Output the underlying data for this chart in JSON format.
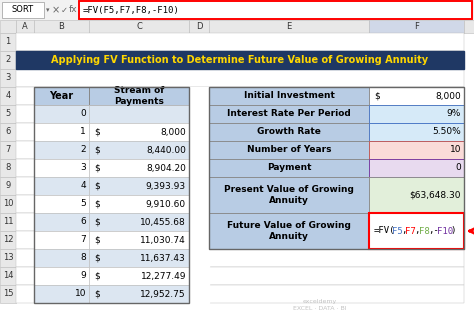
{
  "title": "Applying FV Function to Determine Future Value of Growing Annuity",
  "title_bg": "#1F3864",
  "title_color": "#FFD700",
  "formula_bar_text": "=FV(F5,F7,F8,-F10)",
  "formula_bar_cell": "SORT",
  "left_table_header_bg": "#B8CCE4",
  "left_rows": [
    [
      "0",
      "",
      ""
    ],
    [
      "1",
      "$",
      "8,000"
    ],
    [
      "2",
      "$",
      "8,440.00"
    ],
    [
      "3",
      "$",
      "8,904.20"
    ],
    [
      "4",
      "$",
      "9,393.93"
    ],
    [
      "5",
      "$",
      "9,910.60"
    ],
    [
      "6",
      "$",
      "10,455.68"
    ],
    [
      "7",
      "$",
      "11,030.74"
    ],
    [
      "8",
      "$",
      "11,637.43"
    ],
    [
      "9",
      "$",
      "12,277.49"
    ],
    [
      "10",
      "$",
      "12,952.75"
    ]
  ],
  "right_rows": [
    {
      "label": "Initial Investment",
      "dollar": "$",
      "value": "8,000",
      "lbg": "#B8CCE4",
      "vbg": "#FFFFFF",
      "vborder": "#888888"
    },
    {
      "label": "Interest Rate Per Period",
      "dollar": "",
      "value": "9%",
      "lbg": "#B8CCE4",
      "vbg": "#D6EAF8",
      "vborder": "#4472C4"
    },
    {
      "label": "Growth Rate",
      "dollar": "",
      "value": "5.50%",
      "lbg": "#B8CCE4",
      "vbg": "#D6EAF8",
      "vborder": "#4472C4"
    },
    {
      "label": "Number of Years",
      "dollar": "",
      "value": "10",
      "lbg": "#B8CCE4",
      "vbg": "#FADBD8",
      "vborder": "#C0504D"
    },
    {
      "label": "Payment",
      "dollar": "",
      "value": "0",
      "lbg": "#B8CCE4",
      "vbg": "#E8DAEF",
      "vborder": "#7030A0"
    },
    {
      "label": "Present Value of Growing\nAnnuity",
      "dollar": "",
      "value": "$63,648.30",
      "lbg": "#B8CCE4",
      "vbg": "#E2EFDA",
      "vborder": "#888888"
    },
    {
      "label": "Future Value of Growing\nAnnuity",
      "dollar": "",
      "value": "=FV(F5,F7,F8,-F10)",
      "lbg": "#B8CCE4",
      "vbg": "#FFFFFF",
      "vborder": "#FF0000"
    }
  ],
  "toolbar_bg": "#F2F2F2",
  "col_hdr_bg": "#E8E8E8",
  "row_num_bg": "#E8E8E8",
  "grid_color": "#BBBBBB",
  "alt_row_bg": "#DCE6F1",
  "normal_row_bg": "#FFFFFF",
  "sheet_bg": "#FFFFFF"
}
